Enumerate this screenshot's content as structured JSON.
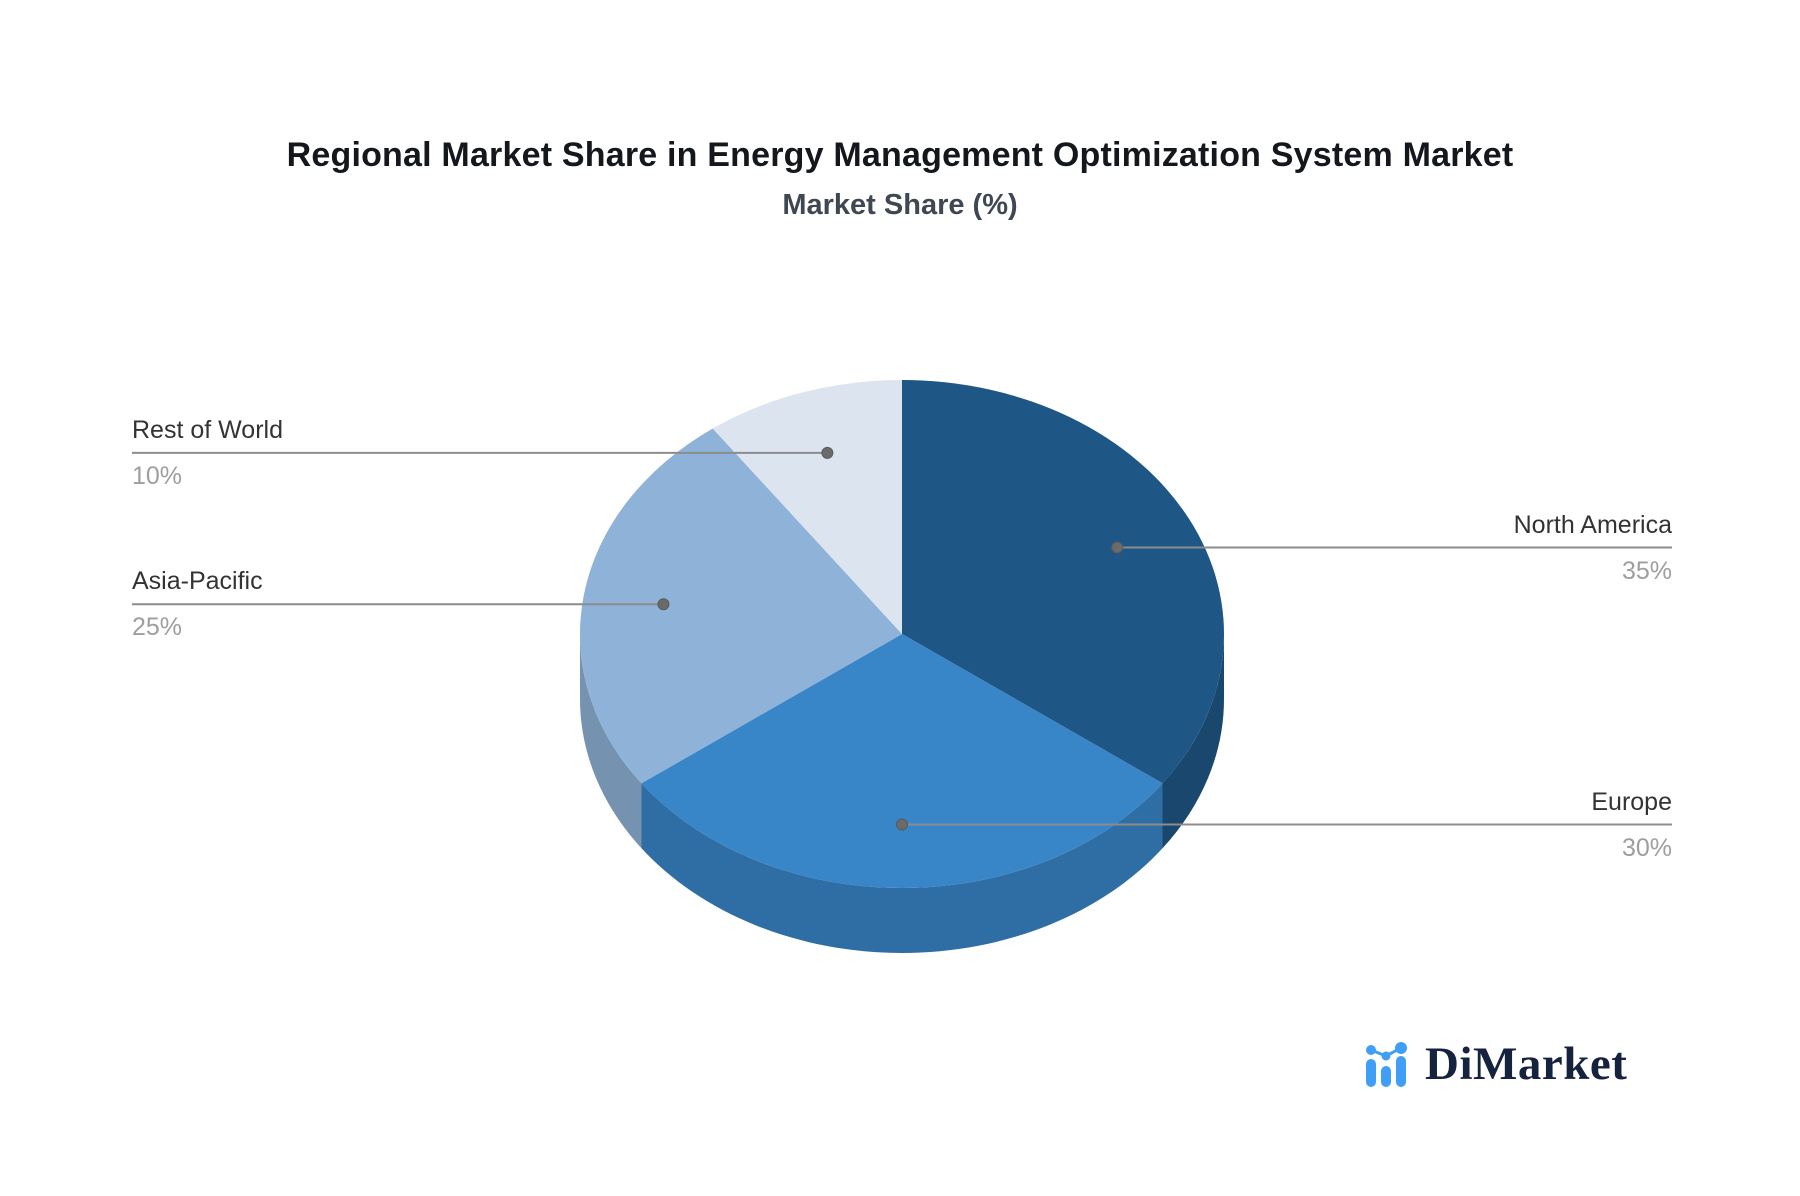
{
  "chart_data": {
    "type": "pie",
    "title": "Regional Market Share in Energy Management Optimization System Market",
    "subtitle": "Market Share (%)",
    "unit": "%",
    "style": "3d",
    "start_angle": "12-o'clock",
    "direction": "clockwise",
    "legend": "none",
    "series": [
      {
        "name": "North America",
        "value": 35,
        "label": "35%",
        "color": "#1e5686"
      },
      {
        "name": "Europe",
        "value": 30,
        "label": "30%",
        "color": "#3886c8"
      },
      {
        "name": "Asia-Pacific",
        "value": 25,
        "label": "25%",
        "color": "#8fb3d8"
      },
      {
        "name": "Rest of World",
        "value": 10,
        "label": "10%",
        "color": "#dce4ef"
      }
    ]
  },
  "branding": {
    "logo_text": "DiMarket",
    "logo_icon": "bar-line-chart-icon",
    "logo_accent": "#3f9ef5",
    "logo_color": "#16233e"
  },
  "colors": {
    "background": "#ffffff",
    "title": "#14181c",
    "subtitle": "#3f4852",
    "label_name": "#333333",
    "label_value": "#9e9e9e",
    "leader_line": "#8c8c8c",
    "leader_dot": "#6b6b6b"
  }
}
